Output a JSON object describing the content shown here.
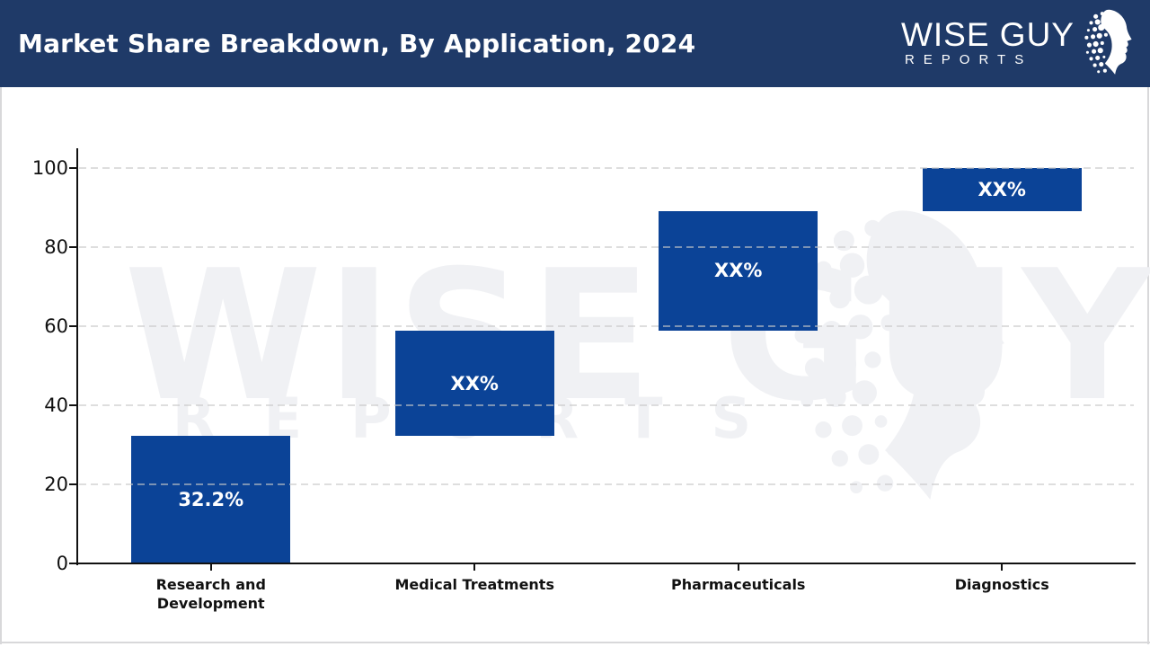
{
  "header": {
    "title": "Market Share Breakdown, By Application, 2024",
    "logo": {
      "primary": "WISE GUY",
      "secondary": "REPORTS",
      "head_icon": "dotted-face-profile"
    }
  },
  "watermark": {
    "primary": "WISE GUY",
    "secondary": "REPORTS",
    "head_icon": "dotted-face-profile"
  },
  "colors": {
    "header_bg": "#1f3a68",
    "title_text": "#ffffff",
    "logo_text": "#ffffff",
    "bar_fill": "#0b4397",
    "bar_label_text": "#ffffff",
    "axis": "#111111",
    "tick_label_text": "#111111",
    "gridline_on_white": "#d8d8d8",
    "gridline_overlay": "rgba(200,200,200,0.6)",
    "watermark": "#f0f1f4",
    "border": "#d8d8da",
    "background": "#ffffff"
  },
  "chart_data": {
    "type": "bar",
    "subtype": "waterfall",
    "title": "Market Share Breakdown, By Application, 2024",
    "xlabel": "",
    "ylabel": "",
    "units": "percent",
    "categories": [
      "Research and Development",
      "Medical Treatments",
      "Pharmaceuticals",
      "Diagnostics"
    ],
    "series": [
      {
        "name": "Market share",
        "segments": [
          {
            "category": "Research and Development",
            "start": 0,
            "end": 32.2,
            "label": "32.2%"
          },
          {
            "category": "Medical Treatments",
            "start": 32.2,
            "end": 58.9,
            "label": "XX%"
          },
          {
            "category": "Pharmaceuticals",
            "start": 58.9,
            "end": 89.2,
            "label": "XX%"
          },
          {
            "category": "Diagnostics",
            "start": 89.2,
            "end": 100,
            "label": "XX%"
          }
        ]
      }
    ],
    "yticks": [
      0,
      20,
      40,
      60,
      80,
      100
    ],
    "ylim": [
      0,
      105
    ],
    "grid": "horizontal-dashed-over-bars",
    "legend": "none"
  }
}
